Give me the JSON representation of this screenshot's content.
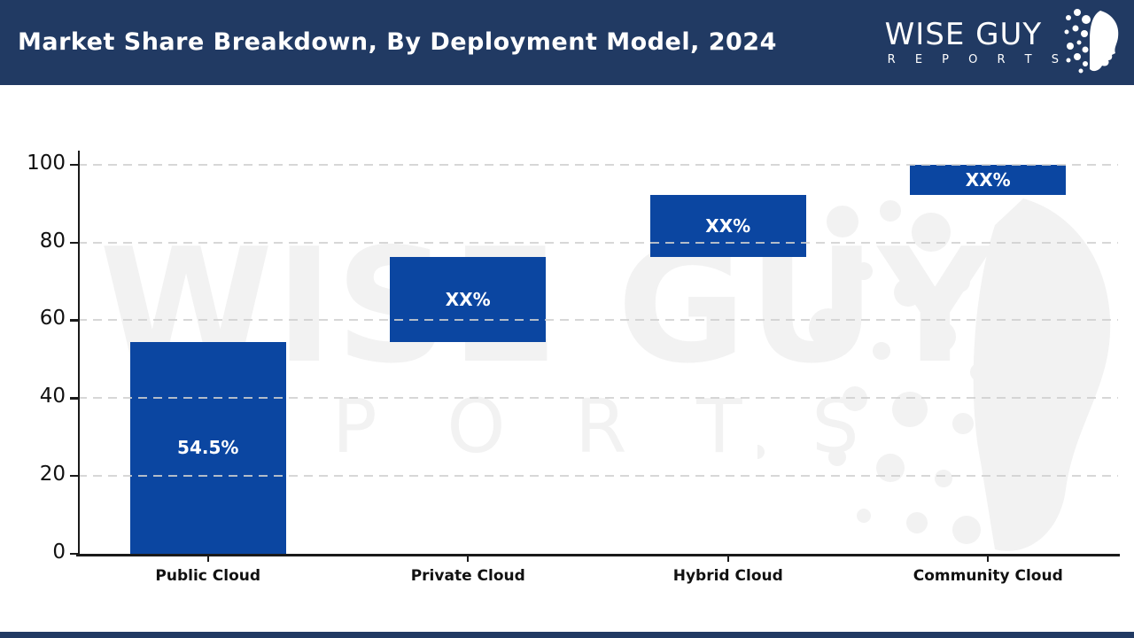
{
  "header": {
    "title": "Market Share Breakdown, By Deployment Model, 2024",
    "logo": {
      "line1": "WISE GUY",
      "line2": "R E P O R T S"
    }
  },
  "watermark": {
    "line1": "WISE GUY",
    "line2": "P O R T S"
  },
  "colors": {
    "header_navy": "#213a63",
    "bar_blue": "#0b46a1",
    "grid_gray": "#d9d9d9",
    "axis_black": "#1a1a1a",
    "watermark_gray": "#f2f2f2",
    "bar_label_white": "#ffffff"
  },
  "chart_data": {
    "type": "bar",
    "subtype": "waterfall",
    "title": "Market Share Breakdown, By Deployment Model, 2024",
    "categories": [
      "Public Cloud",
      "Private Cloud",
      "Hybrid Cloud",
      "Community Cloud"
    ],
    "series": [
      {
        "name": "Public Cloud",
        "start": 0,
        "end": 54.5,
        "label": "54.5%"
      },
      {
        "name": "Private Cloud",
        "start": 54.5,
        "end": 76.3,
        "label": "XX%"
      },
      {
        "name": "Hybrid Cloud",
        "start": 76.3,
        "end": 92.3,
        "label": "XX%"
      },
      {
        "name": "Community Cloud",
        "start": 92.3,
        "end": 100,
        "label": "XX%"
      }
    ],
    "bar_labels": [
      "54.5%",
      "XX%",
      "XX%",
      "XX%"
    ],
    "xlabel": "",
    "ylabel": "",
    "ylim": [
      0,
      103.6
    ],
    "yticks": [
      0,
      20,
      40,
      60,
      80,
      100
    ],
    "grid": "horizontal-dashed",
    "legend": "none",
    "bar_color": "#0b46a1",
    "unit": "%"
  }
}
